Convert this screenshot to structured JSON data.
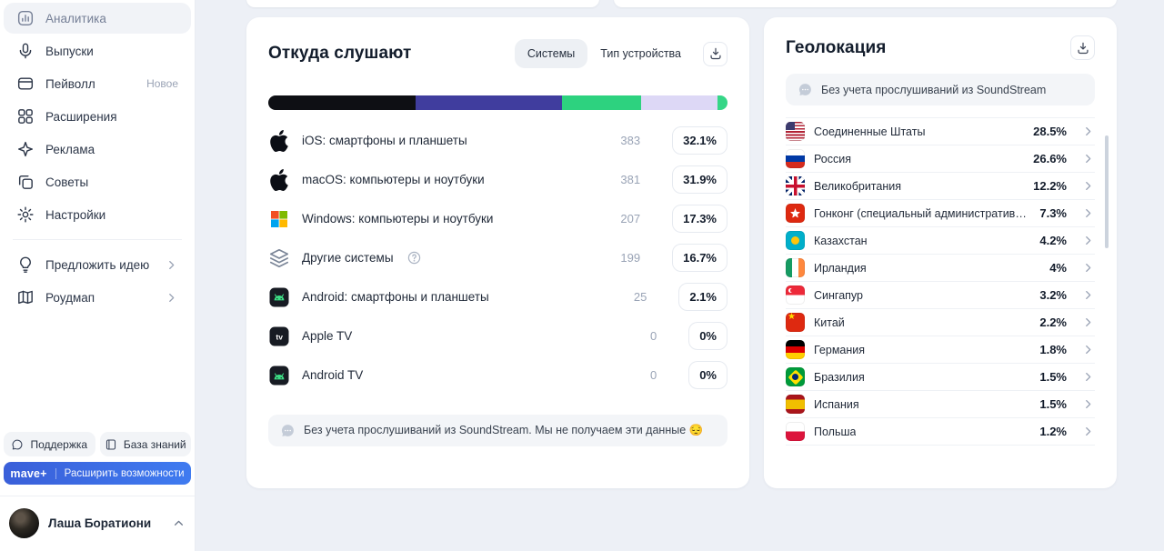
{
  "app": {
    "accent_color": "#3e6ee3",
    "background_color": "#edf0f6"
  },
  "sidebar": {
    "items": [
      {
        "label": "Аналитика",
        "icon": "analytics-icon",
        "active": true
      },
      {
        "label": "Выпуски",
        "icon": "microphone-icon"
      },
      {
        "label": "Пейволл",
        "icon": "paywall-icon",
        "badge": "Новое"
      },
      {
        "label": "Расширения",
        "icon": "extensions-icon"
      },
      {
        "label": "Реклама",
        "icon": "ads-icon"
      },
      {
        "label": "Советы",
        "icon": "tips-icon"
      },
      {
        "label": "Настройки",
        "icon": "settings-icon"
      }
    ],
    "secondary_items": [
      {
        "label": "Предложить идею",
        "icon": "idea-icon",
        "chevron": true
      },
      {
        "label": "Роудмап",
        "icon": "roadmap-icon",
        "chevron": true
      }
    ],
    "footer": {
      "support_label": "Поддержка",
      "knowledge_label": "База знаний",
      "mave_plus": "mave+",
      "upgrade_label": "Расширить возможности",
      "user_name": "Лаша Боратиони"
    }
  },
  "systems_card": {
    "title": "Откуда слушают",
    "tabs": [
      {
        "label": "Системы",
        "active": true
      },
      {
        "label": "Тип устройства",
        "active": false
      }
    ],
    "bar_segments": [
      {
        "name": "iOS",
        "percent": 32.1,
        "color": "#0e0f14"
      },
      {
        "name": "macOS",
        "percent": 31.9,
        "color": "#403d9e"
      },
      {
        "name": "Windows",
        "percent": 17.3,
        "color": "#2dd27f"
      },
      {
        "name": "Другие системы",
        "percent": 16.7,
        "color": "#ddd8f6"
      },
      {
        "name": "Android",
        "percent": 2.1,
        "color": "#35d687"
      }
    ],
    "rows": [
      {
        "icon": "apple-icon",
        "label": "iOS: смартфоны и планшеты",
        "count": "383",
        "percent": "32.1%"
      },
      {
        "icon": "apple-icon",
        "label": "macOS: компьютеры и ноутбуки",
        "count": "381",
        "percent": "31.9%"
      },
      {
        "icon": "windows-icon",
        "label": "Windows: компьютеры и ноутбуки",
        "count": "207",
        "percent": "17.3%"
      },
      {
        "icon": "layers-icon",
        "label": "Другие системы",
        "count": "199",
        "percent": "16.7%",
        "help": true
      },
      {
        "icon": "android-icon",
        "label": "Android: смартфоны и планшеты",
        "count": "25",
        "percent": "2.1%"
      },
      {
        "icon": "apple-tv-icon",
        "label": "Apple TV",
        "count": "0",
        "percent": "0%"
      },
      {
        "icon": "android-tv-icon",
        "label": "Android TV",
        "count": "0",
        "percent": "0%"
      }
    ],
    "footnote": "Без учета прослушиваний из SoundStream. Мы не получаем эти данные 😔"
  },
  "geo_card": {
    "title": "Геолокация",
    "note": "Без учета прослушиваний из SoundStream",
    "rows": [
      {
        "flag": "us",
        "country": "Соединенные Штаты",
        "percent": "28.5%"
      },
      {
        "flag": "ru",
        "country": "Россия",
        "percent": "26.6%"
      },
      {
        "flag": "gb",
        "country": "Великобритания",
        "percent": "12.2%"
      },
      {
        "flag": "hk",
        "country": "Гонконг (специальный административный район)",
        "percent": "7.3%"
      },
      {
        "flag": "kz",
        "country": "Казахстан",
        "percent": "4.2%"
      },
      {
        "flag": "ie",
        "country": "Ирландия",
        "percent": "4%"
      },
      {
        "flag": "sg",
        "country": "Сингапур",
        "percent": "3.2%"
      },
      {
        "flag": "cn",
        "country": "Китай",
        "percent": "2.2%"
      },
      {
        "flag": "de",
        "country": "Германия",
        "percent": "1.8%"
      },
      {
        "flag": "br",
        "country": "Бразилия",
        "percent": "1.5%"
      },
      {
        "flag": "es",
        "country": "Испания",
        "percent": "1.5%"
      },
      {
        "flag": "pl",
        "country": "Польша",
        "percent": "1.2%"
      }
    ]
  }
}
